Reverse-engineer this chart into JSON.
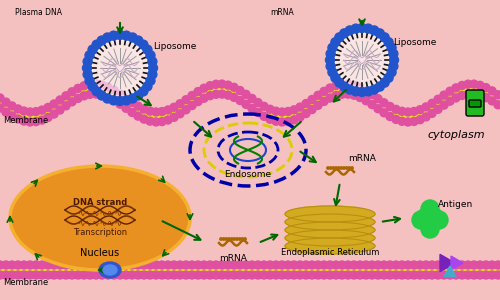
{
  "bg_color": "#f5c0c0",
  "membrane_pink": "#e050a0",
  "membrane_yellow": "#e8e020",
  "liposome_blue": "#2255cc",
  "liposome_dark": "#111111",
  "liposome_inner": "#d0c0e0",
  "endosome_dark_blue": "#0000aa",
  "endosome_mid_blue": "#2244cc",
  "endosome_yellow": "#ddcc00",
  "nucleus_orange": "#e89020",
  "nucleus_border": "#f5b030",
  "nucleus_dna": "#994400",
  "er_gold": "#b89010",
  "er_light": "#d4aa20",
  "antigen_green": "#22cc44",
  "arrow_green": "#006600",
  "text_black": "#000000",
  "mrna_brown": "#aa6600",
  "green_receptor": "#22bb22",
  "blue_protein": "#3355cc",
  "purple1": "#7722bb",
  "purple2": "#aa44ee",
  "labels": {
    "plasma_dna": "Plasma DNA",
    "mrna_top": "mRNA",
    "liposome1": "Liposome",
    "liposome2": "Liposome",
    "membrane1": "Membrane",
    "cytoplasm": "cytoplasm",
    "endosome": "Endosome",
    "mrna1": "mRNA",
    "mrna2": "mRNA",
    "dna_strand": "DNA strand",
    "transcription": "Transcription",
    "nucleus": "Nucleus",
    "er": "Endoplasmic Reticulum",
    "antigen": "Antigen",
    "membrane2": "Membrane"
  }
}
